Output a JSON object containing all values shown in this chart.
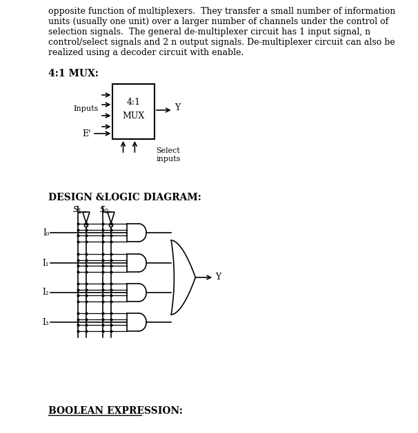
{
  "bg_color": "#ffffff",
  "text_color": "#000000",
  "para_lines": [
    "opposite function of multiplexers.  They transfer a small number of information",
    "units (usually one unit) over a larger number of channels under the control of",
    "selection signals.  The general de-multiplexer circuit has 1 input signal, n",
    "control/select signals and 2 n output signals. De-multiplexer circuit can also be",
    "realized using a decoder circuit with enable."
  ],
  "mux_heading": "4:1 MUX:",
  "design_heading": "DESIGN &LOGIC DIAGRAM:",
  "bool_heading": "BOOLEAN EXPRESSION:",
  "s1_label": "S₁",
  "s0_label": "S₀",
  "i_labels": [
    "I₀",
    "I₁",
    "I₂",
    "I₃"
  ],
  "y_label": "Y"
}
